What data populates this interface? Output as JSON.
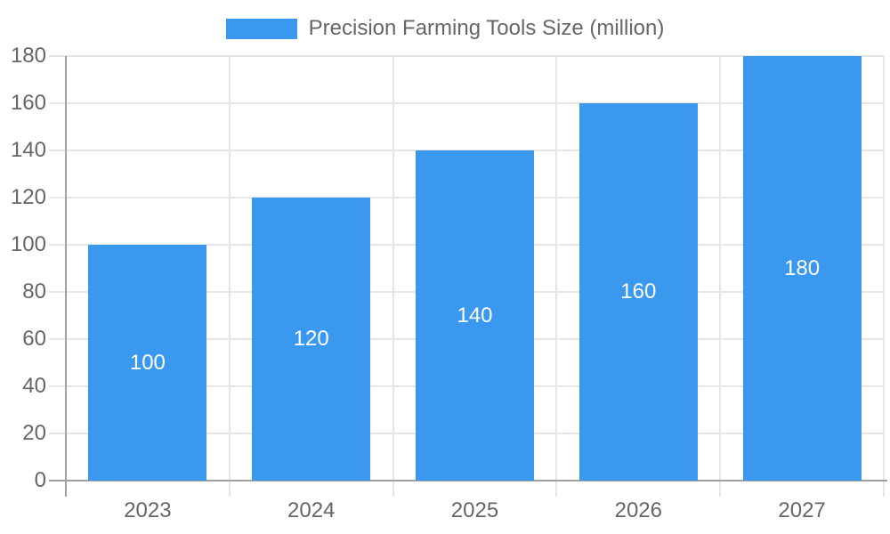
{
  "chart_data": {
    "type": "bar",
    "title": "Precision Farming Tools Size (million)",
    "categories": [
      "2023",
      "2024",
      "2025",
      "2026",
      "2027"
    ],
    "values": [
      100,
      120,
      140,
      160,
      180
    ],
    "xlabel": "",
    "ylabel": "",
    "ylim": [
      0,
      180
    ],
    "yticks": [
      0,
      20,
      40,
      60,
      80,
      100,
      120,
      140,
      160,
      180
    ],
    "grid": true,
    "legend_position": "top",
    "bar_color": "#3a99ee",
    "value_label_color": "#ffffff",
    "tick_label_color": "#666666",
    "grid_color": "#e6e6e6",
    "axis_line_color": "#a0a0a0",
    "background_color": "#ffffff"
  }
}
